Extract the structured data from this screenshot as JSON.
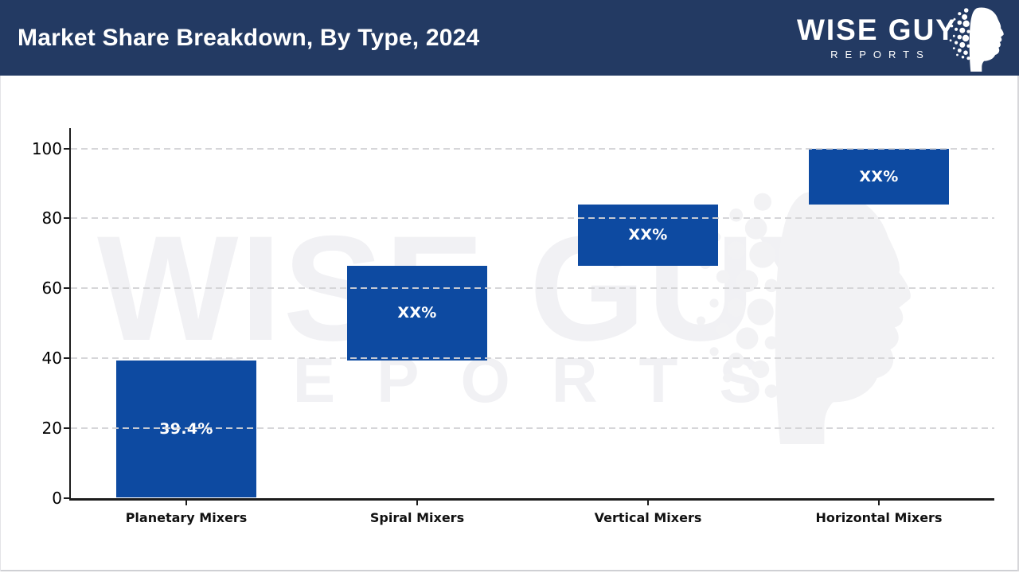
{
  "header": {
    "title": "Market Share Breakdown, By Type, 2024",
    "logo": {
      "line1": "WISE GUY",
      "line2": "REPORTS"
    }
  },
  "watermark": {
    "line1": "WISE GUY",
    "line2": "REPORTS"
  },
  "colors": {
    "header_bg": "#233a63",
    "bar_blue": "#0d4aa1",
    "grid_gray": "#d3d3d6",
    "axis_black": "#1c1c1c",
    "watermark_gray": "#f1f1f4",
    "label_white": "#ffffff"
  },
  "chart_data": {
    "type": "bar",
    "subtype": "waterfall",
    "title": "Market Share Breakdown, By Type, 2024",
    "categories": [
      "Planetary Mixers",
      "Spiral Mixers",
      "Vertical Mixers",
      "Horizontal Mixers"
    ],
    "segments": [
      {
        "category": "Planetary Mixers",
        "start": 0,
        "end": 39.4,
        "label": "39.4%"
      },
      {
        "category": "Spiral Mixers",
        "start": 39.4,
        "end": 66.5,
        "label": "XX%"
      },
      {
        "category": "Vertical Mixers",
        "start": 66.5,
        "end": 84.0,
        "label": "XX%"
      },
      {
        "category": "Horizontal Mixers",
        "start": 84.0,
        "end": 100.0,
        "label": "XX%"
      }
    ],
    "ylim": [
      0,
      100
    ],
    "yticks": [
      0,
      20,
      40,
      60,
      80,
      100
    ],
    "xlabel": "",
    "ylabel": "",
    "grid": "horizontal-dashed",
    "legend": false,
    "bar_color": "#0d4aa1",
    "value_label_color": "#ffffff"
  }
}
